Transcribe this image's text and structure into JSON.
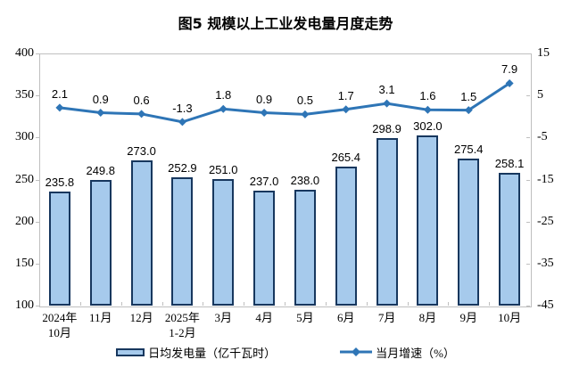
{
  "title": "图5 规模以上工业发电量月度走势",
  "legend": {
    "bar_label": "日均发电量（亿千瓦时）",
    "line_label": "当月增速（%）"
  },
  "chart_data": {
    "type": "bar",
    "subtype": "combo-bar-line",
    "title": "图5 规模以上工业发电量月度走势",
    "categories": [
      "2024年\n10月",
      "11月",
      "12月",
      "2025年\n1-2月",
      "3月",
      "4月",
      "5月",
      "6月",
      "7月",
      "8月",
      "9月",
      "10月"
    ],
    "series": [
      {
        "name": "日均发电量（亿千瓦时）",
        "type": "bar",
        "axis": "left",
        "values": [
          235.8,
          249.8,
          273.0,
          252.9,
          251.0,
          237.0,
          238.0,
          265.4,
          298.9,
          302.0,
          275.4,
          258.1
        ],
        "labels": [
          "235.8",
          "249.8",
          "273.0",
          "252.9",
          "251.0",
          "237.0",
          "238.0",
          "265.4",
          "298.9",
          "302.0",
          "275.4",
          "258.1"
        ]
      },
      {
        "name": "当月增速（%）",
        "type": "line",
        "axis": "right",
        "values": [
          2.1,
          0.9,
          0.6,
          -1.3,
          1.8,
          0.9,
          0.5,
          1.7,
          3.1,
          1.6,
          1.5,
          7.9
        ],
        "labels": [
          "2.1",
          "0.9",
          "0.6",
          "-1.3",
          "1.8",
          "0.9",
          "0.5",
          "1.7",
          "3.1",
          "1.6",
          "1.5",
          "7.9"
        ]
      }
    ],
    "left_axis": {
      "min": 100,
      "max": 400,
      "step": 50,
      "ticks": [
        "400",
        "350",
        "300",
        "250",
        "200",
        "150",
        "100"
      ]
    },
    "right_axis": {
      "min": -45,
      "max": 15,
      "step": 10,
      "ticks": [
        "15",
        "5",
        "-5",
        "-15",
        "-25",
        "-35",
        "-45"
      ]
    },
    "grid": false,
    "legend_position": "bottom",
    "colors": {
      "bar_fill": "#A6CAEC",
      "bar_border": "#17375E",
      "line": "#2E75B6",
      "marker": "#2E75B6",
      "axis": "#BFBFBF",
      "text": "#000000"
    }
  }
}
